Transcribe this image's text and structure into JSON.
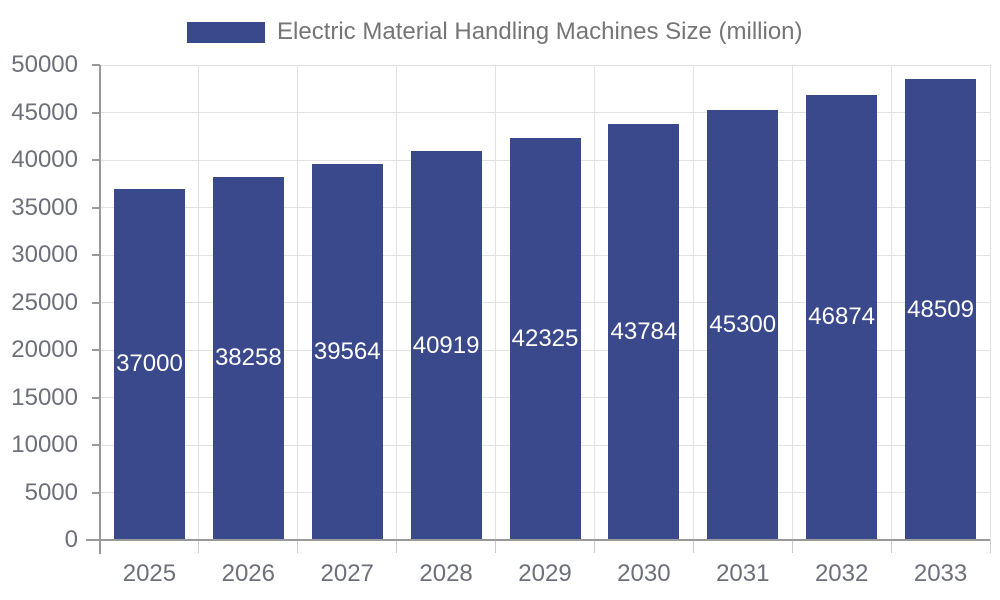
{
  "legend": {
    "label": "Electric Material Handling Machines Size (million)"
  },
  "chart_data": {
    "type": "bar",
    "title": "Electric Material Handling Machines Size (million)",
    "categories": [
      "2025",
      "2026",
      "2027",
      "2028",
      "2029",
      "2030",
      "2031",
      "2032",
      "2033"
    ],
    "series": [
      {
        "name": "Electric Material Handling Machines Size (million)",
        "values": [
          37000,
          38258,
          39564,
          40919,
          42325,
          43784,
          45300,
          46874,
          48509
        ]
      }
    ],
    "bar_value_labels": [
      "37000",
      "38258",
      "39564",
      "40919",
      "42325",
      "43784",
      "45300",
      "46874",
      "48509"
    ],
    "xlabel": "",
    "ylabel": "",
    "ylim": [
      0,
      50000
    ],
    "yticks": [
      0,
      5000,
      10000,
      15000,
      20000,
      25000,
      30000,
      35000,
      40000,
      45000,
      50000
    ],
    "grid": "horizontal and vertical light gray split lines",
    "legend_position": "top",
    "value_label_position": "inside-center, white",
    "colors": {
      "bar": "#3A488C",
      "grid": "#E2E2E2",
      "axis": "#999999",
      "x_tick": "#CCCCCC",
      "axis_text": "#6E7079",
      "legend_text": "#757575",
      "bar_label": "#FFFFFF",
      "background": "#FFFFFF"
    }
  }
}
